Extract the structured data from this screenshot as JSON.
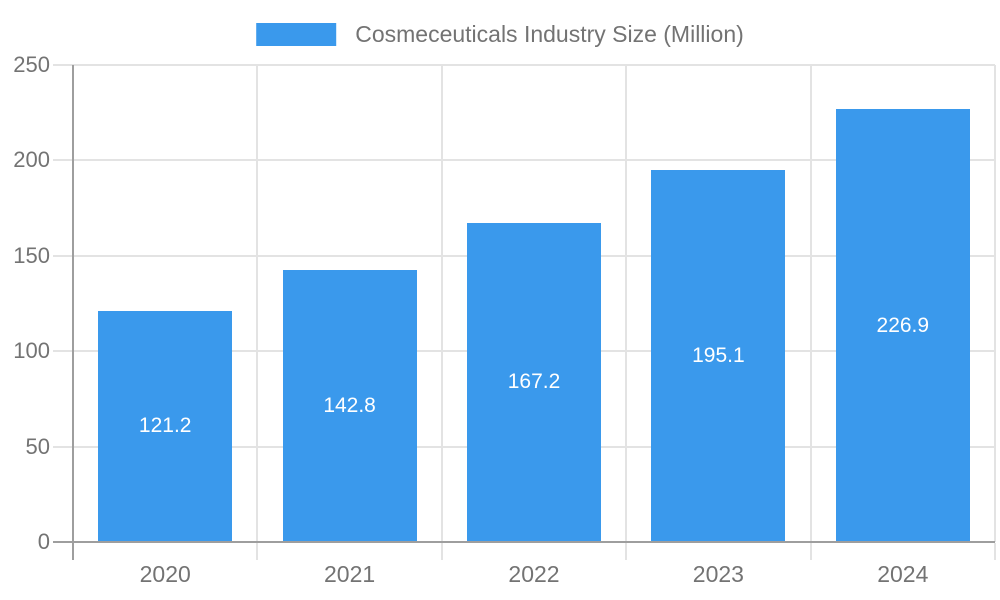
{
  "chart_data": {
    "type": "bar",
    "title": "Cosmeceuticals Industry Size (Million)",
    "legend_position": "top",
    "categories": [
      "2020",
      "2021",
      "2022",
      "2023",
      "2024"
    ],
    "series": [
      {
        "name": "Cosmeceuticals Industry Size (Million)",
        "values": [
          121.2,
          142.8,
          167.2,
          195.1,
          226.9
        ]
      }
    ],
    "value_labels": [
      "121.2",
      "142.8",
      "167.2",
      "195.1",
      "226.9"
    ],
    "value_labels_position": "center-inside-bar",
    "xlabel": "",
    "ylabel": "",
    "ylim": [
      0,
      250
    ],
    "ytick_step": 50,
    "yticks": [
      "0",
      "50",
      "100",
      "150",
      "200",
      "250"
    ],
    "grid": true,
    "colors": {
      "bar": "#3a99ec",
      "grid": "#e3e3e3",
      "axis": "#9e9e9e",
      "text": "#737373",
      "value_label": "#ffffff"
    }
  }
}
